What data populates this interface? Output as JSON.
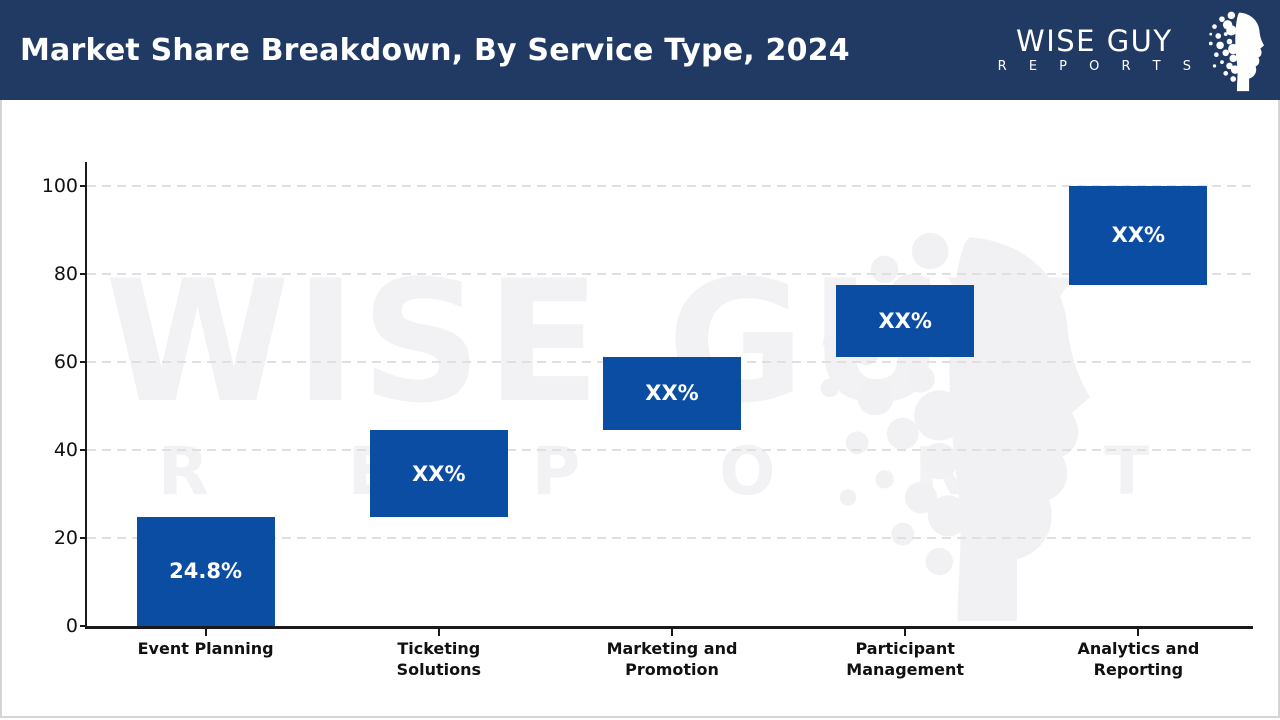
{
  "header": {
    "title": "Market Share Breakdown, By Service Type, 2024",
    "background_color": "#213a64",
    "logo": {
      "wordmark": "WISE GUY",
      "subtitle": "R E P O R T S"
    }
  },
  "watermark": {
    "wordmark": "WISE GUY",
    "subtitle": "R E P O R T S"
  },
  "chart_data": {
    "type": "bar",
    "subtype": "waterfall",
    "title": "Market Share Breakdown, By Service Type, 2024",
    "categories": [
      "Event Planning",
      "Ticketing\nSolutions",
      "Marketing and\nPromotion",
      "Participant\nManagement",
      "Analytics and\nReporting"
    ],
    "segments": [
      {
        "category": "Event Planning",
        "start": 0,
        "end": 24.8,
        "label": "24.8%"
      },
      {
        "category": "Ticketing Solutions",
        "start": 24.8,
        "end": 44.5,
        "label": "XX%"
      },
      {
        "category": "Marketing and Promotion",
        "start": 44.5,
        "end": 61.2,
        "label": "XX%"
      },
      {
        "category": "Participant Management",
        "start": 61.2,
        "end": 77.6,
        "label": "XX%"
      },
      {
        "category": "Analytics and Reporting",
        "start": 77.6,
        "end": 100,
        "label": "XX%"
      }
    ],
    "yticks": [
      0,
      20,
      40,
      60,
      80,
      100
    ],
    "ylim": [
      0,
      105
    ],
    "xlabel": "",
    "ylabel": "",
    "grid": "horizontal-dashed",
    "legend": "none",
    "bar_color": "#0b4da2"
  }
}
